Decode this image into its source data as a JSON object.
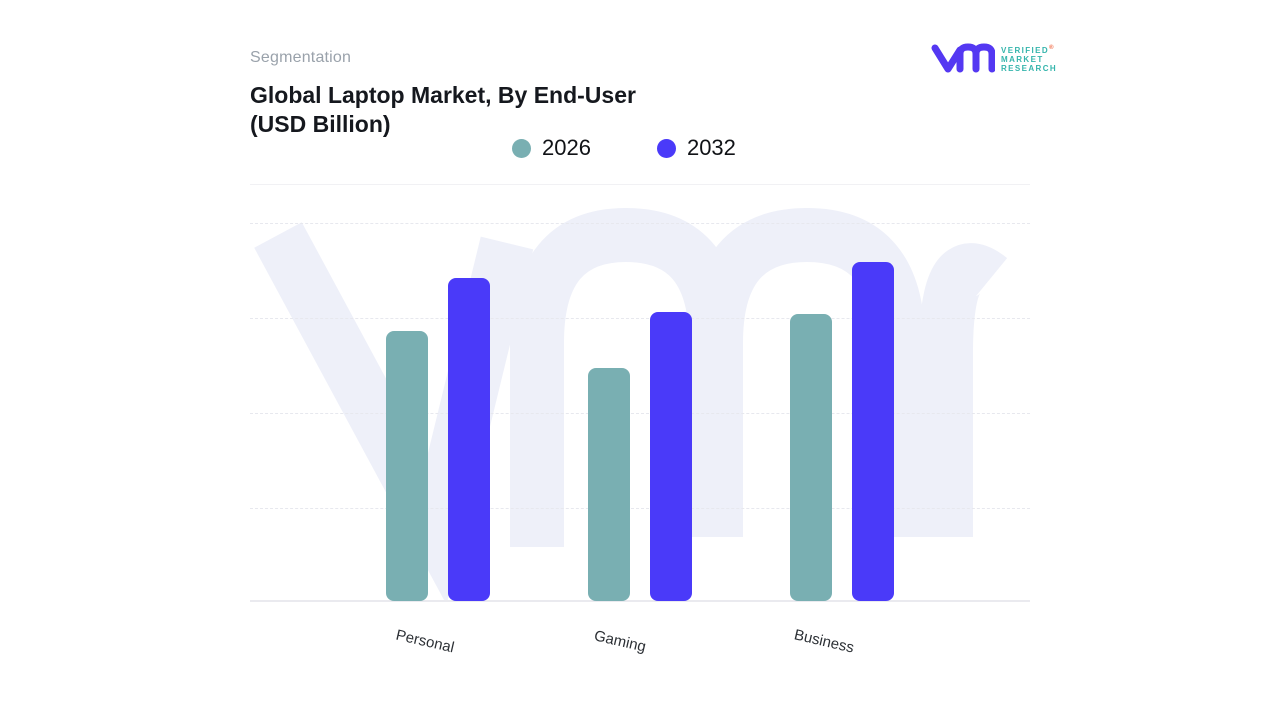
{
  "header": {
    "eyebrow": "Segmentation",
    "title_line1": "Global Laptop Market, By End-User",
    "title_line2": "(USD Billion)"
  },
  "logo": {
    "lines": [
      "VERIFIED",
      "MARKET",
      "RESEARCH"
    ],
    "registered": "®",
    "mark_color": "#5438F2",
    "text_color": "#35B5AC",
    "registered_color": "#F0653F"
  },
  "legend": [
    {
      "label": "2026",
      "color": "#79AFB2"
    },
    {
      "label": "2032",
      "color": "#4A3AF9"
    }
  ],
  "chart_data": {
    "type": "bar",
    "title": "Global Laptop Market, By End-User (USD Billion)",
    "categories": [
      "Personal",
      "Gaming",
      "Business"
    ],
    "series": [
      {
        "name": "2026",
        "color": "#79AFB2",
        "values": [
          64.7,
          55.9,
          68.8
        ]
      },
      {
        "name": "2032",
        "color": "#4A3AF9",
        "values": [
          77.5,
          69.3,
          81.3
        ]
      }
    ],
    "xlabel": "",
    "ylabel": "",
    "ylim": [
      0,
      100
    ],
    "value_axis_labels_visible": false,
    "grid": "horizontal-dashed",
    "legend_position": "top-center"
  },
  "watermark": {
    "name": "vmr-monogram",
    "color": "#EEF0F9"
  }
}
